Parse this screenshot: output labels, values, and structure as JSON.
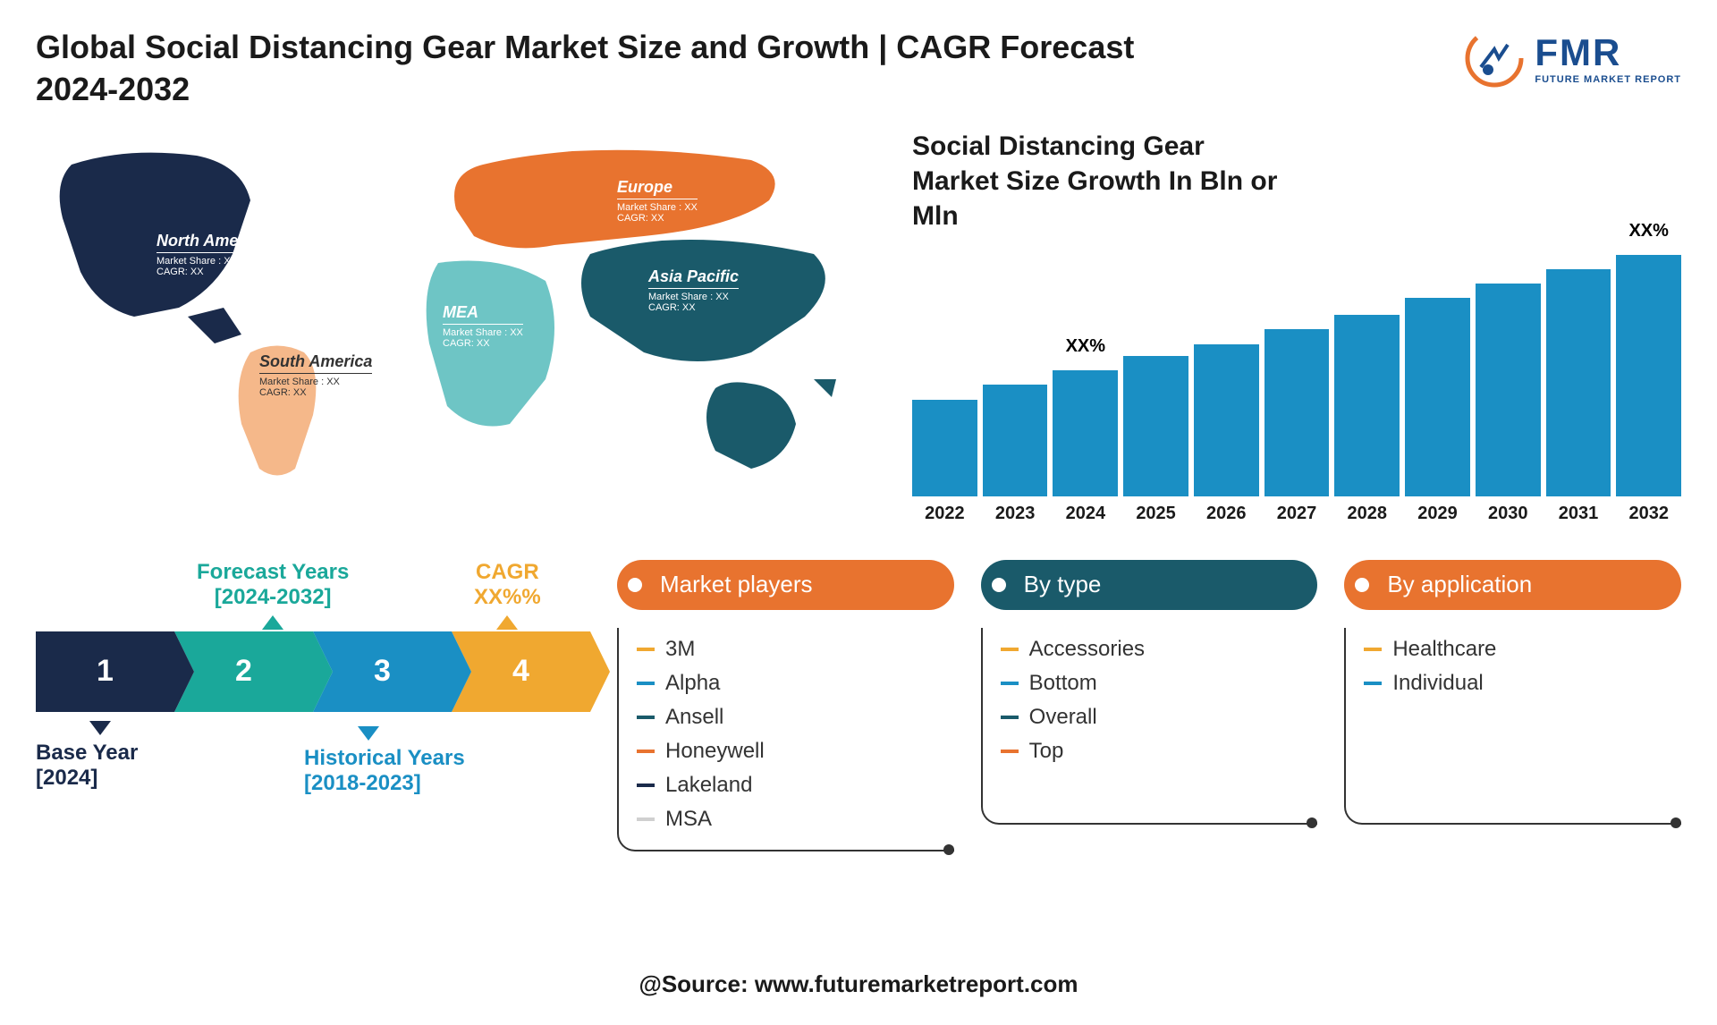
{
  "title": "Global Social Distancing Gear Market Size and Growth | CAGR Forecast 2024-2032",
  "logo": {
    "fmr": "FMR",
    "sub": "FUTURE MARKET REPORT"
  },
  "map": {
    "regions": [
      {
        "name": "North America",
        "share": "Market Share : XX",
        "cagr": "CAGR: XX",
        "color": "#1a2a4a"
      },
      {
        "name": "South America",
        "share": "Market Share : XX",
        "cagr": "CAGR: XX",
        "color": "#f5b88a"
      },
      {
        "name": "Europe",
        "share": "Market Share : XX",
        "cagr": "CAGR: XX",
        "color": "#e8732f"
      },
      {
        "name": "MEA",
        "share": "Market Share : XX",
        "cagr": "CAGR: XX",
        "color": "#6ec5c5"
      },
      {
        "name": "Asia Pacific",
        "share": "Market Share : XX",
        "cagr": "CAGR: XX",
        "color": "#1a5a6a"
      }
    ]
  },
  "chart": {
    "type": "bar",
    "title": "Social Distancing Gear Market Size Growth In Bln or Mln",
    "bar_color": "#1a8fc4",
    "years": [
      "2022",
      "2023",
      "2024",
      "2025",
      "2026",
      "2027",
      "2028",
      "2029",
      "2030",
      "2031",
      "2032"
    ],
    "heights_pct": [
      40,
      46,
      52,
      58,
      63,
      69,
      75,
      82,
      88,
      94,
      100
    ],
    "callouts": {
      "2024": "XX%",
      "2032": "XX%"
    },
    "ylim": [
      0,
      100
    ]
  },
  "timeline": {
    "forecast": {
      "label": "Forecast Years",
      "range": "[2024-2032]",
      "color": "#1aa89a"
    },
    "cagr": {
      "label": "CAGR",
      "value": "XX%%",
      "color": "#f0a830"
    },
    "base": {
      "label": "Base Year",
      "range": "[2024]",
      "color": "#1a2a4a"
    },
    "historical": {
      "label": "Historical Years",
      "range": "[2018-2023]",
      "color": "#1a8fc4"
    },
    "steps": [
      {
        "num": "1",
        "color": "#1a2a4a"
      },
      {
        "num": "2",
        "color": "#1aa89a"
      },
      {
        "num": "3",
        "color": "#1a8fc4"
      },
      {
        "num": "4",
        "color": "#f0a830"
      }
    ]
  },
  "categories": [
    {
      "title": "Market players",
      "pill_color": "#e8732f",
      "items": [
        {
          "label": "3M",
          "dash": "#f0a830"
        },
        {
          "label": "Alpha",
          "dash": "#1a8fc4"
        },
        {
          "label": "Ansell",
          "dash": "#1a5a6a"
        },
        {
          "label": "Honeywell",
          "dash": "#e8732f"
        },
        {
          "label": "Lakeland",
          "dash": "#1a2a4a"
        },
        {
          "label": "MSA",
          "dash": "#d0d0d0"
        }
      ]
    },
    {
      "title": "By type",
      "pill_color": "#1a5a6a",
      "items": [
        {
          "label": "Accessories",
          "dash": "#f0a830"
        },
        {
          "label": "Bottom",
          "dash": "#1a8fc4"
        },
        {
          "label": "Overall",
          "dash": "#1a5a6a"
        },
        {
          "label": "Top",
          "dash": "#e8732f"
        }
      ]
    },
    {
      "title": "By application",
      "pill_color": "#e8732f",
      "items": [
        {
          "label": "Healthcare",
          "dash": "#f0a830"
        },
        {
          "label": "Individual",
          "dash": "#1a8fc4"
        }
      ]
    }
  ],
  "source": "@Source: www.futuremarketreport.com"
}
